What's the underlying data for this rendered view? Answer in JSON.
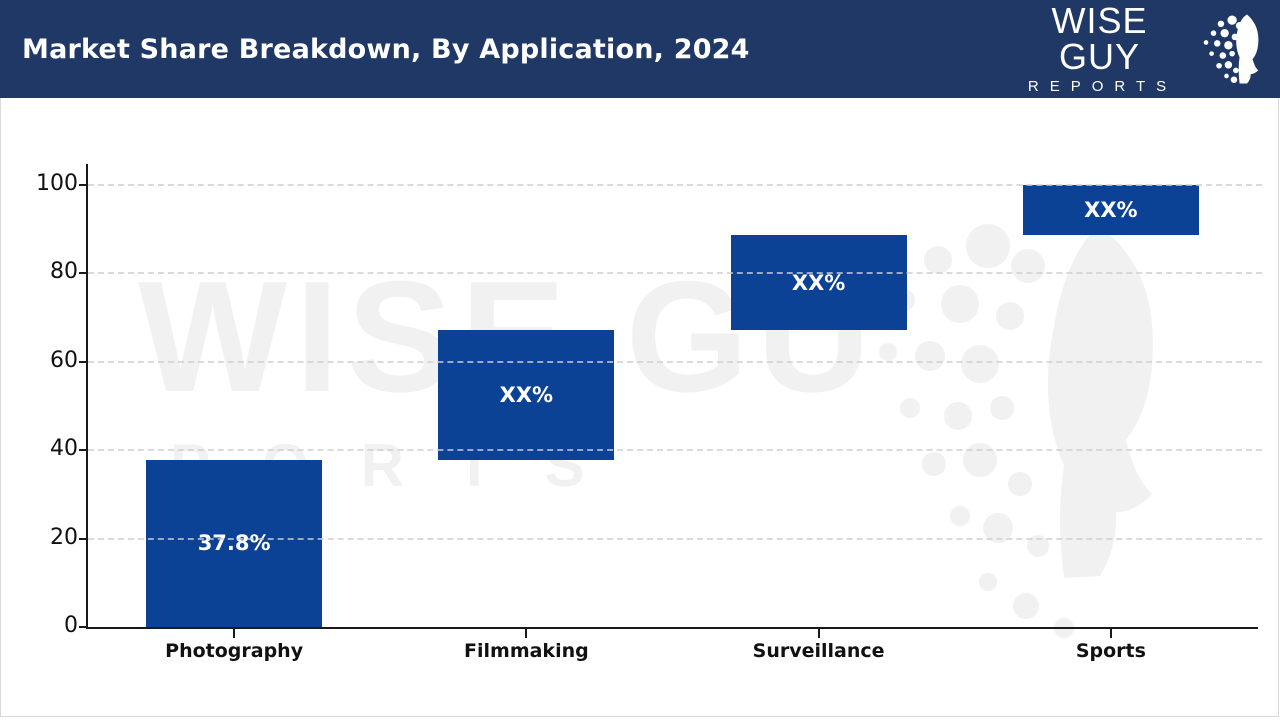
{
  "header": {
    "title": "Market Share Breakdown, By Application, 2024",
    "logo": {
      "line1": "WISE GUY",
      "line2": "REPORTS"
    }
  },
  "watermark": {
    "line1": "WISE GU",
    "line2": "PORTS"
  },
  "colors": {
    "header_bg": "#1f3866",
    "bar": "#0b4296",
    "grid": "#dcdcdc",
    "axis": "#1a1a1a",
    "watermark": "#f1f1f1",
    "bar_label": "#ffffff"
  },
  "chart_data": {
    "type": "bar",
    "subtype": "waterfall-floating-bars",
    "title": "Market Share Breakdown, By Application, 2024",
    "categories": [
      "Photography",
      "Filmmaking",
      "Surveillance",
      "Sports"
    ],
    "segments": [
      {
        "category": "Photography",
        "start": 0,
        "end": 37.8,
        "label": "37.8%"
      },
      {
        "category": "Filmmaking",
        "start": 37.8,
        "end": 67.2,
        "label": "XX%"
      },
      {
        "category": "Surveillance",
        "start": 67.2,
        "end": 88.6,
        "label": "XX%"
      },
      {
        "category": "Sports",
        "start": 88.6,
        "end": 100,
        "label": "XX%"
      }
    ],
    "bar_color": "#0b4296",
    "xlabel": "",
    "ylabel": "",
    "ylim": [
      0,
      100
    ],
    "yticks": [
      0,
      20,
      40,
      60,
      80,
      100
    ],
    "grid": "horizontal-dashed",
    "legend": "none"
  }
}
